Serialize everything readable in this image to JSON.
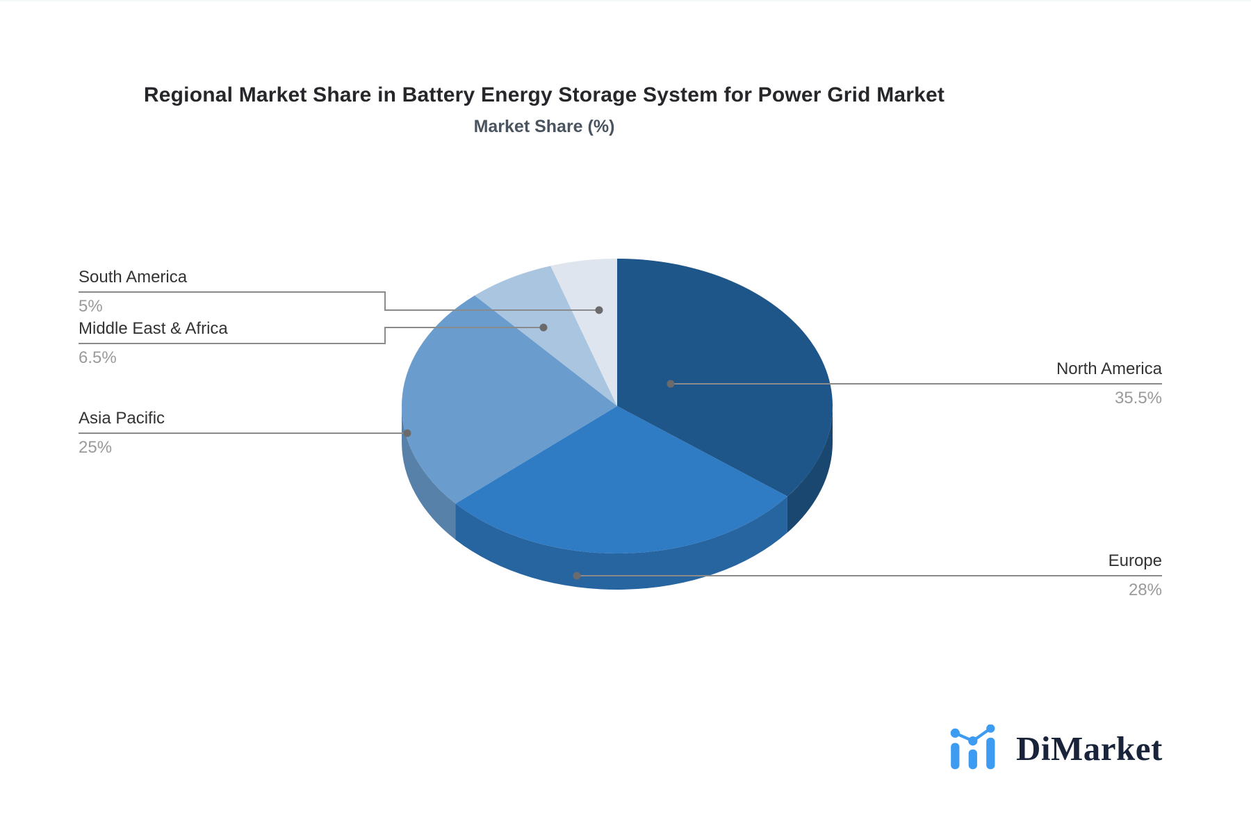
{
  "title": "Regional Market Share in Battery Energy Storage System for Power Grid Market",
  "subtitle": "Market Share (%)",
  "logo": {
    "text": "DiMarket",
    "icon": "bar-line-chart-icon",
    "icon_color": "#3D9CF2",
    "text_color": "#19233A"
  },
  "colors": {
    "background": "#FFFFFF",
    "callout_line": "#8A8A8A",
    "callout_dot": "#6B6B6B",
    "label_text": "#333333",
    "value_text": "#9A9A9A",
    "title_text": "#26272B",
    "subtitle_text": "#49545F"
  },
  "chart_data": {
    "type": "pie",
    "title": "Regional Market Share in Battery Energy Storage System for Power Grid Market",
    "subtitle": "Market Share (%)",
    "unit": "%",
    "style": "3d-pie",
    "start_angle_deg": 0,
    "direction": "clockwise",
    "legend_position": "callout-labels",
    "slices": [
      {
        "label": "North America",
        "value": 35.5,
        "display": "35.5%",
        "color": "#1E5689",
        "label_side": "right"
      },
      {
        "label": "Europe",
        "value": 28,
        "display": "28%",
        "color": "#2F7BC4",
        "label_side": "right"
      },
      {
        "label": "Asia Pacific",
        "value": 25,
        "display": "25%",
        "color": "#6A9DCD",
        "label_side": "left"
      },
      {
        "label": "Middle East & Africa",
        "value": 6.5,
        "display": "6.5%",
        "color": "#AAC5E0",
        "label_side": "left"
      },
      {
        "label": "South America",
        "value": 5,
        "display": "5%",
        "color": "#DEE5EE",
        "label_side": "left"
      }
    ]
  }
}
